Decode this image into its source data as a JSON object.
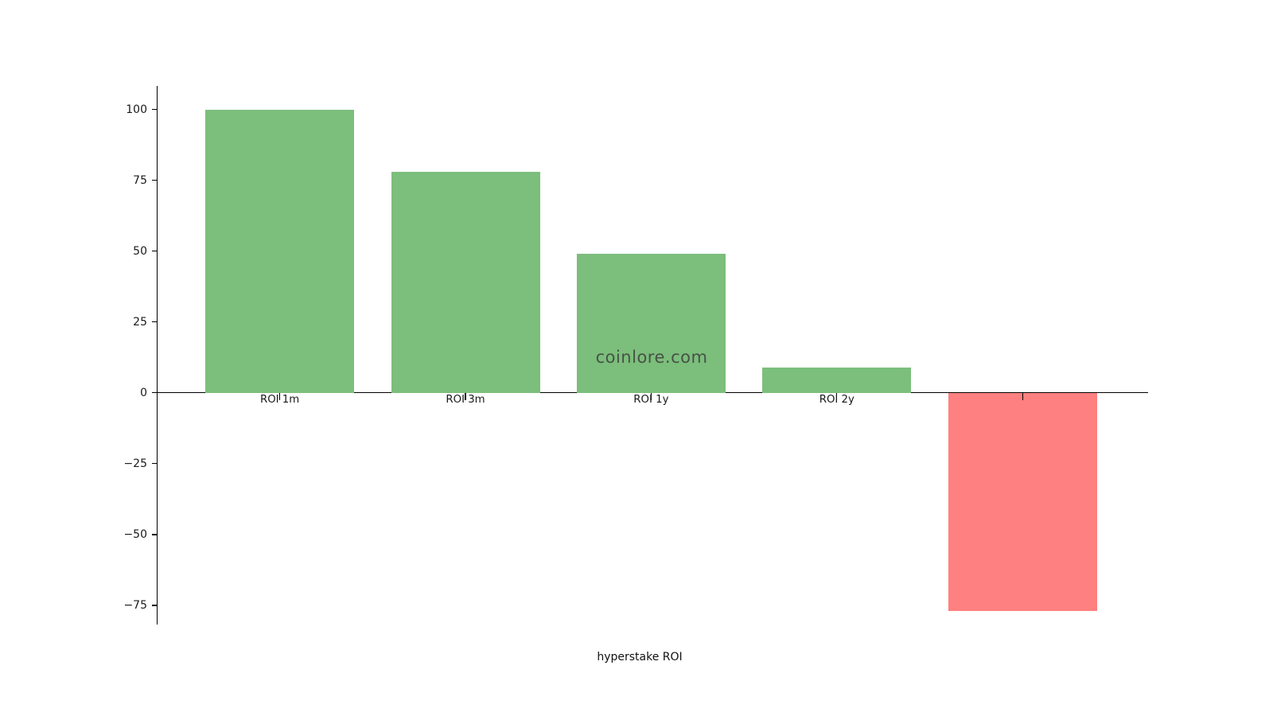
{
  "chart_data": {
    "type": "bar",
    "title": "hyperstake ROI",
    "watermark": "coinlore.com",
    "categories": [
      "ROI 1m",
      "ROI 3m",
      "ROI 1y",
      "ROI 2y",
      ""
    ],
    "values": [
      100,
      78,
      49,
      9,
      -77
    ],
    "bar_colors": [
      "#7cbe7c",
      "#7cbe7c",
      "#7cbe7c",
      "#7cbe7c",
      "#ff8080"
    ],
    "positive_color": "#7cbe7c",
    "negative_color": "#ff8080",
    "yticks": [
      100,
      75,
      50,
      25,
      0,
      -25,
      -50,
      -75
    ],
    "ytick_labels": [
      "100",
      "75",
      "50",
      "25",
      "0",
      "−25",
      "−50",
      "−75"
    ],
    "ylim": [
      -85,
      108
    ],
    "xlabel": "",
    "ylabel": "",
    "grid": false,
    "legend": false,
    "axis_color": "#000000",
    "text_color": "#1a1a1a"
  }
}
